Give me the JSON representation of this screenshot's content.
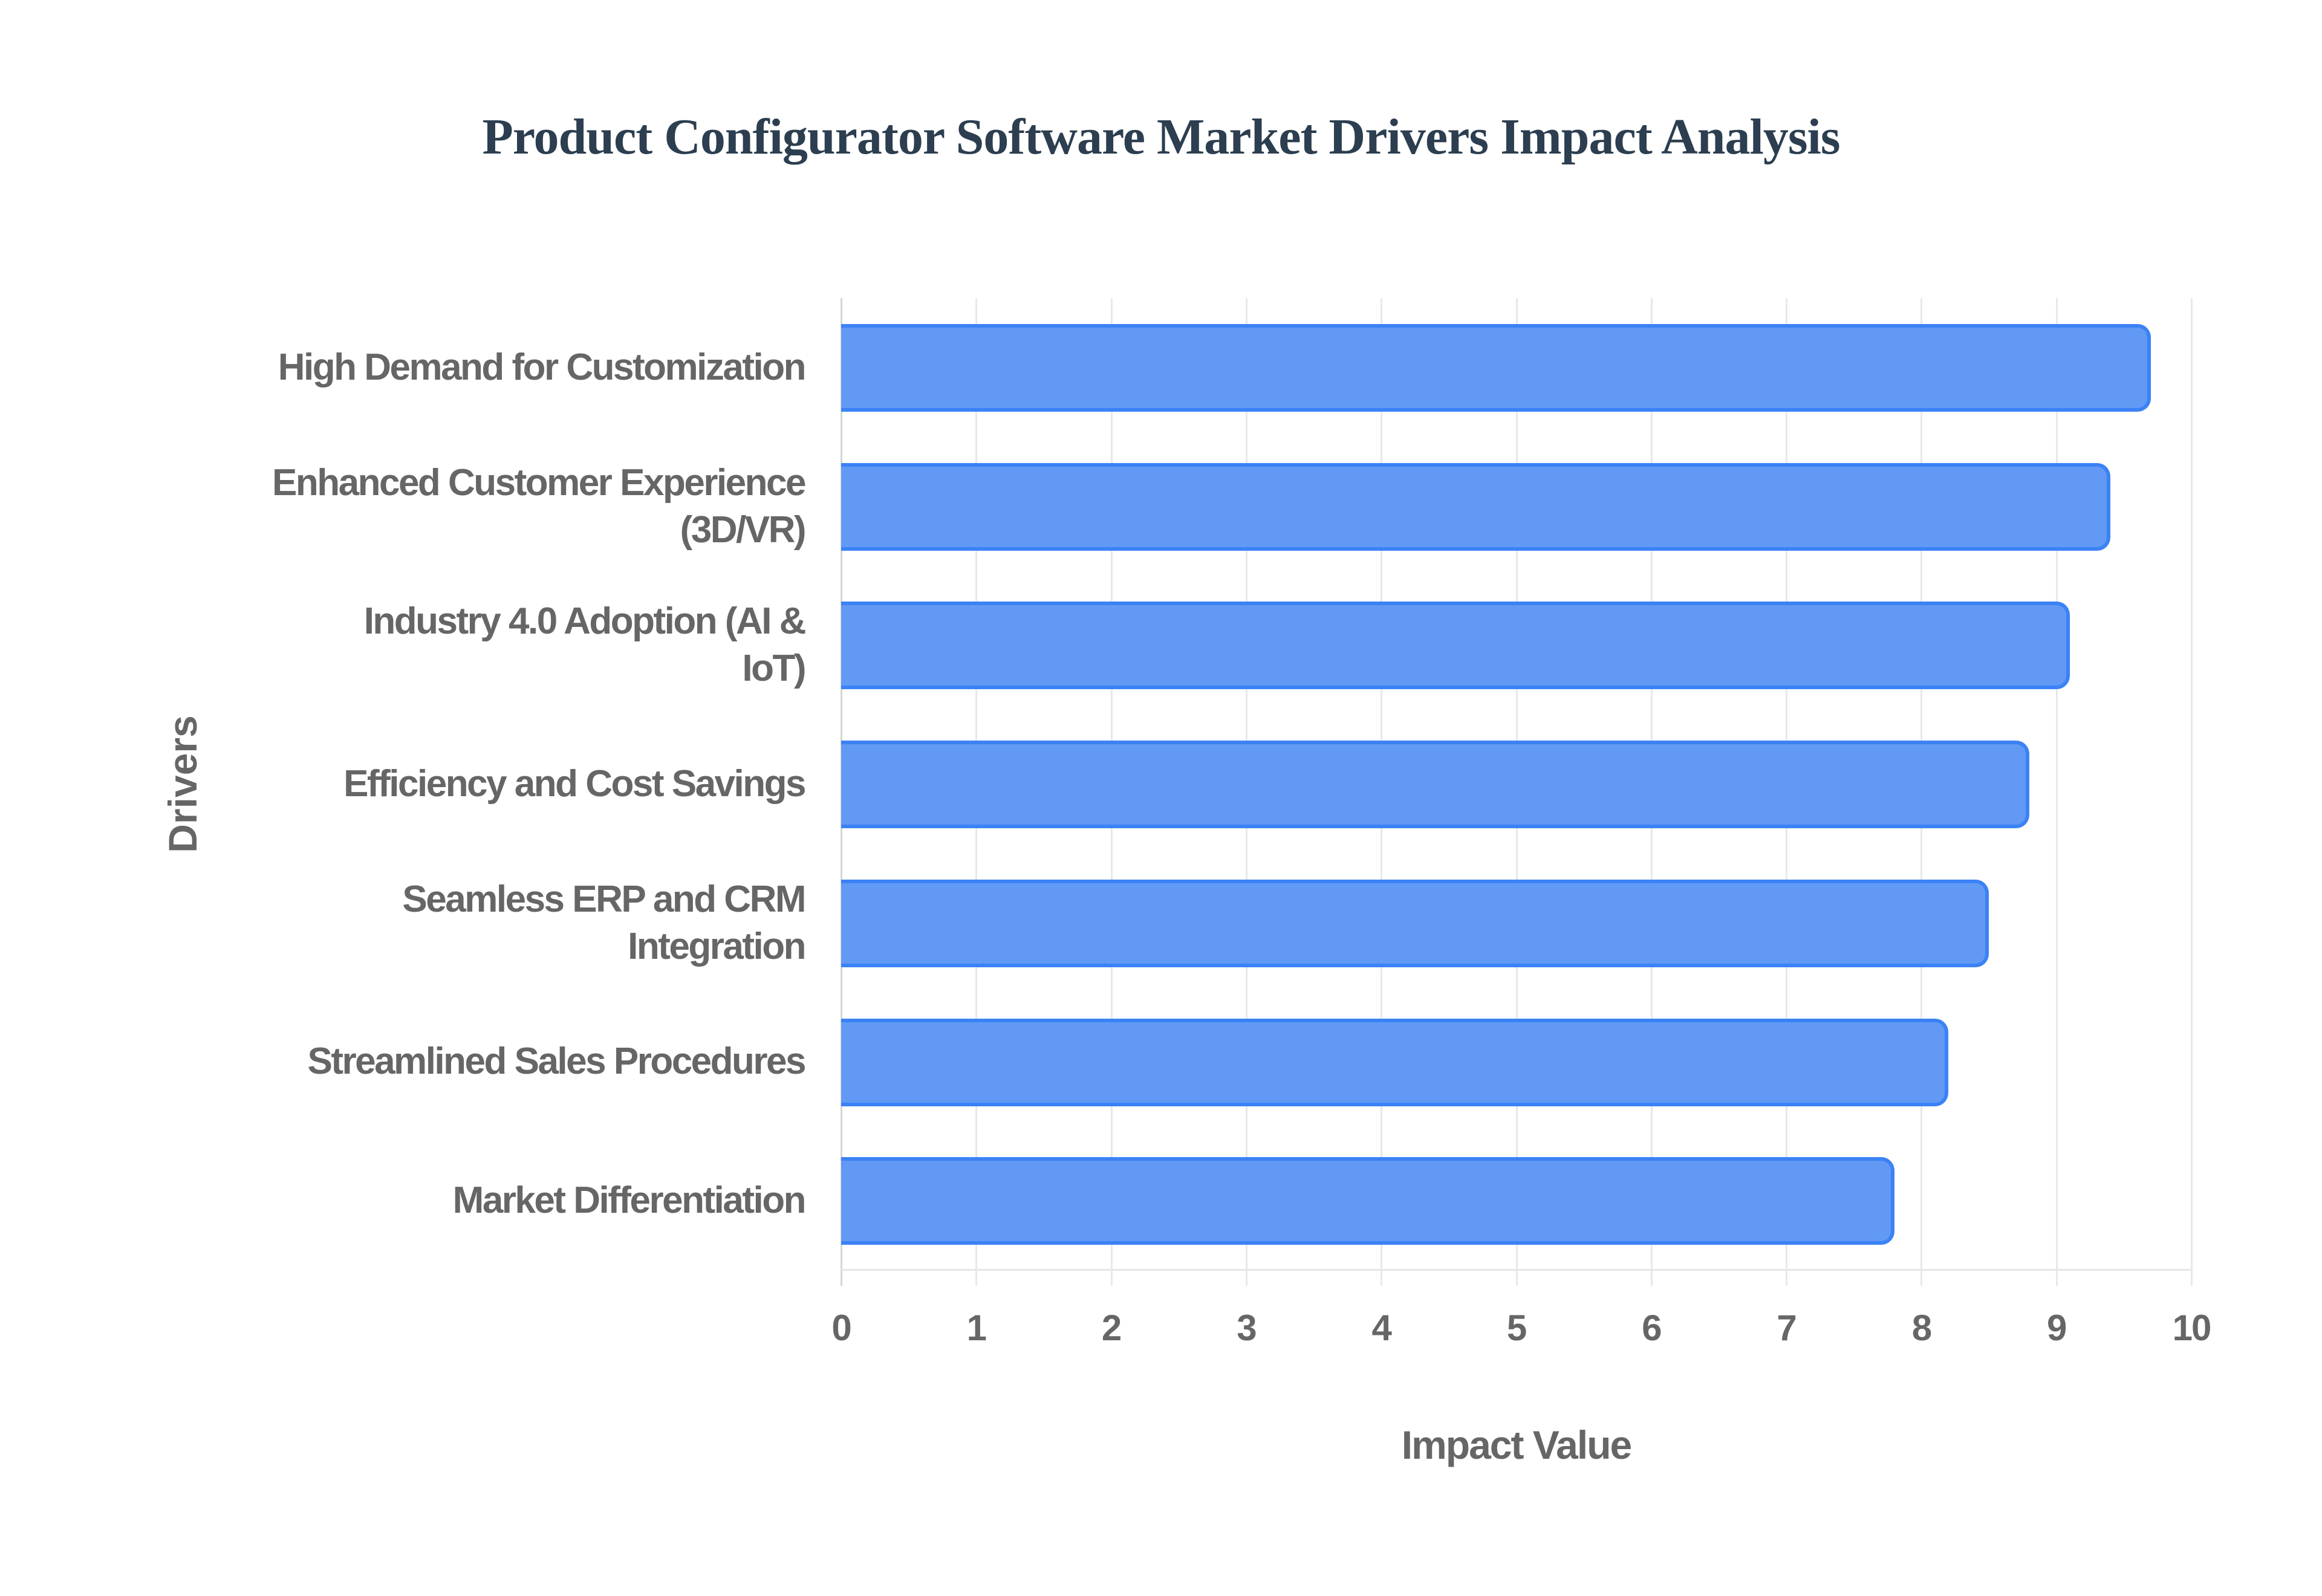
{
  "chart_data": {
    "type": "bar",
    "orientation": "horizontal",
    "title": "Product Configurator Software Market Drivers Impact Analysis",
    "xlabel": "Impact Value",
    "ylabel": "Drivers",
    "xlim": [
      0,
      10
    ],
    "xticks": [
      "0",
      "1",
      "2",
      "3",
      "4",
      "5",
      "6",
      "7",
      "8",
      "9",
      "10"
    ],
    "grid": true,
    "legend": null,
    "categories": [
      "High Demand for Customization",
      "Enhanced Customer Experience (3D/VR)",
      "Industry 4.0 Adoption (AI & IoT)",
      "Efficiency and Cost Savings",
      "Seamless ERP and CRM Integration",
      "Streamlined Sales Procedures",
      "Market Differentiation"
    ],
    "values": [
      9.7,
      9.4,
      9.1,
      8.8,
      8.5,
      8.2,
      7.8
    ],
    "colors": {
      "bar_fill": "#6199f4",
      "bar_border": "#3b82f6",
      "title": "#2c3e50",
      "text": "#666666",
      "grid": "#e8e8e8"
    }
  },
  "labels": {
    "rows": [
      [
        "High Demand for Customization"
      ],
      [
        "Enhanced Customer Experience",
        "(3D/VR)"
      ],
      [
        "Industry 4.0 Adoption (AI &",
        "IoT)"
      ],
      [
        "Efficiency and Cost Savings"
      ],
      [
        "Seamless ERP and CRM",
        "Integration"
      ],
      [
        "Streamlined Sales Procedures"
      ],
      [
        "Market Differentiation"
      ]
    ]
  }
}
